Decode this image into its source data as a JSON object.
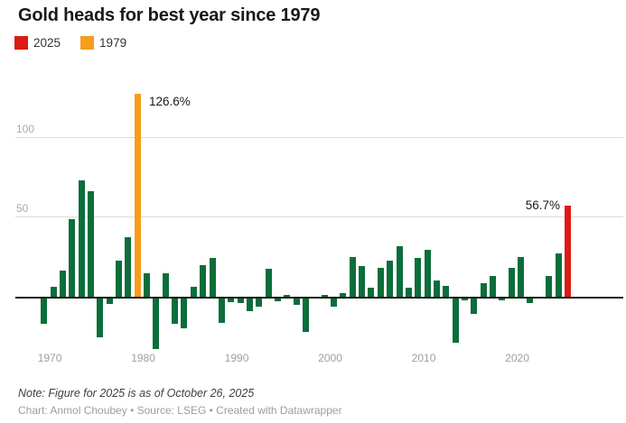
{
  "header": {
    "title": "Gold heads for best year since 1979"
  },
  "legend": {
    "items": [
      {
        "label": "2025",
        "color": "#dd1a14"
      },
      {
        "label": "1979",
        "color": "#f89c1c"
      }
    ]
  },
  "chart_data": {
    "type": "bar",
    "title": "Gold heads for best year since 1979",
    "xlabel": "",
    "ylabel": "",
    "unit": "%",
    "grid": true,
    "ylim": [
      -40,
      135
    ],
    "yticks": [
      50,
      100
    ],
    "xticks": [
      1970,
      1980,
      1990,
      2000,
      2010,
      2020
    ],
    "categories": [
      1969,
      1970,
      1971,
      1972,
      1973,
      1974,
      1975,
      1976,
      1977,
      1978,
      1979,
      1980,
      1981,
      1982,
      1983,
      1984,
      1985,
      1986,
      1987,
      1988,
      1989,
      1990,
      1991,
      1992,
      1993,
      1994,
      1995,
      1996,
      1997,
      1998,
      1999,
      2000,
      2001,
      2002,
      2003,
      2004,
      2005,
      2006,
      2007,
      2008,
      2009,
      2010,
      2011,
      2012,
      2013,
      2014,
      2015,
      2016,
      2017,
      2018,
      2019,
      2020,
      2021,
      2022,
      2023,
      2024,
      2025
    ],
    "values": [
      -16.3,
      6.3,
      16.6,
      48.7,
      72.9,
      66.1,
      -24.8,
      -4.1,
      22.6,
      37.0,
      126.6,
      14.9,
      -32.1,
      14.9,
      -16.3,
      -19.0,
      6.0,
      19.6,
      24.5,
      -15.7,
      -2.8,
      -3.1,
      -8.6,
      -5.7,
      17.7,
      -2.2,
      1.0,
      -4.6,
      -21.4,
      -0.8,
      0.9,
      -5.4,
      2.5,
      24.8,
      19.4,
      5.5,
      18.2,
      22.8,
      31.4,
      5.8,
      24.4,
      29.5,
      10.2,
      7.0,
      -28.0,
      -1.5,
      -10.4,
      8.5,
      13.1,
      -1.6,
      18.3,
      25.1,
      -3.6,
      -0.3,
      13.1,
      27.2,
      56.7
    ],
    "colors": {
      "default": "#0b6e3a",
      "highlight_1979": "#f89c1c",
      "highlight_2025": "#dd1a14"
    },
    "annotations": [
      {
        "year": 1979,
        "label": "126.6%"
      },
      {
        "year": 2025,
        "label": "56.7%"
      }
    ],
    "legend_position": "top-left"
  },
  "footer": {
    "note": "Note: Figure for 2025 is as of October 26, 2025",
    "credit": "Chart: Anmol Choubey • Source: LSEG • Created with Datawrapper"
  }
}
